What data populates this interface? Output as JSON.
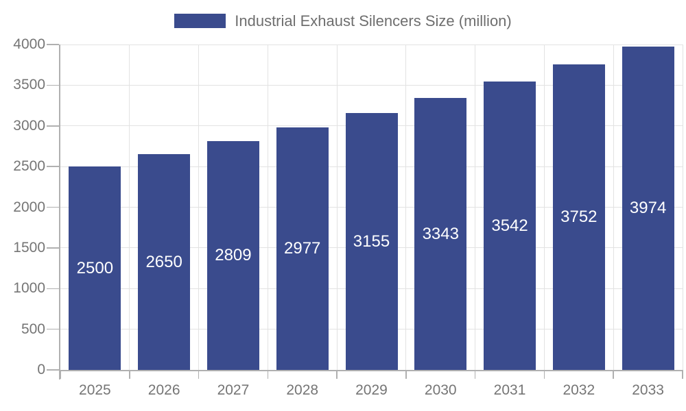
{
  "legend": {
    "label": "Industrial Exhaust Silencers Size (million)"
  },
  "colors": {
    "bar": "#3A4B8D",
    "value_label": "#FFFFFF",
    "axis_text": "#757575",
    "legend_text": "#6E6E6E",
    "grid_line": "#E2E2E2",
    "axis_line": "#B0B0B0",
    "background": "#FFFFFF"
  },
  "chart_data": {
    "type": "bar",
    "title": "Industrial Exhaust Silencers Size (million)",
    "categories": [
      "2025",
      "2026",
      "2027",
      "2028",
      "2029",
      "2030",
      "2031",
      "2032",
      "2033"
    ],
    "values": [
      2500,
      2650,
      2809,
      2977,
      3155,
      3343,
      3542,
      3752,
      3974
    ],
    "xlabel": "",
    "ylabel": "",
    "ylim": [
      0,
      4000
    ],
    "yticks": [
      0,
      500,
      1000,
      1500,
      2000,
      2500,
      3000,
      3500,
      4000
    ],
    "grid": true,
    "legend_position": "top",
    "value_labels": "inside-center"
  }
}
